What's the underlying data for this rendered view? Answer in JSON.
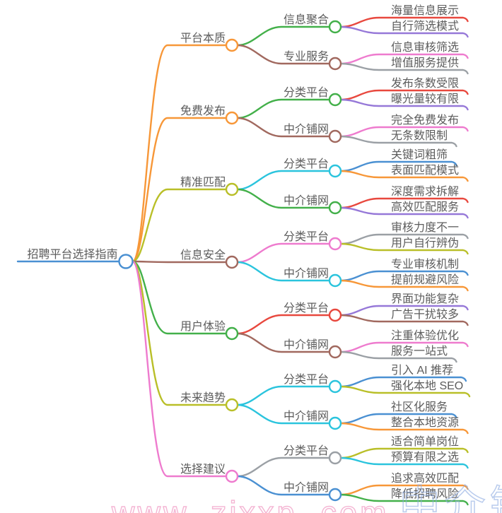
{
  "title": "招聘平台选择指南",
  "palette": {
    "blue": "#4a90d2",
    "orange": "#f79738",
    "olive": "#b9bf28",
    "brown": "#a1695f",
    "green": "#43b04a",
    "cyan": "#2bc4dd",
    "pink": "#ee7bce",
    "red": "#e8483e",
    "purple": "#9678d8",
    "gray": "#9ba0a5"
  },
  "root": {
    "label": "招聘平台选择指南",
    "color": "blue"
  },
  "branches": [
    {
      "label": "平台本质",
      "color": "orange",
      "children": [
        {
          "label": "信息聚合",
          "color": "green",
          "leaves": [
            {
              "label": "海量信息展示",
              "color": "red"
            },
            {
              "label": "自行筛选模式",
              "color": "purple"
            }
          ]
        },
        {
          "label": "专业服务",
          "color": "brown",
          "leaves": [
            {
              "label": "信息审核筛选",
              "color": "pink"
            },
            {
              "label": "增值服务提供",
              "color": "gray"
            }
          ]
        }
      ]
    },
    {
      "label": "免费发布",
      "color": "orange",
      "children": [
        {
          "label": "分类平台",
          "color": "green",
          "leaves": [
            {
              "label": "发布条数受限",
              "color": "red"
            },
            {
              "label": "曝光量较有限",
              "color": "purple"
            }
          ]
        },
        {
          "label": "中介铺网",
          "color": "brown",
          "leaves": [
            {
              "label": "完全免费发布",
              "color": "pink"
            },
            {
              "label": "无条数限制",
              "color": "gray"
            }
          ]
        }
      ]
    },
    {
      "label": "精准匹配",
      "color": "olive",
      "children": [
        {
          "label": "分类平台",
          "color": "cyan",
          "leaves": [
            {
              "label": "关键词粗筛",
              "color": "blue"
            },
            {
              "label": "表面匹配模式",
              "color": "orange"
            }
          ]
        },
        {
          "label": "中介铺网",
          "color": "green",
          "leaves": [
            {
              "label": "深度需求拆解",
              "color": "red"
            },
            {
              "label": "高效匹配服务",
              "color": "purple"
            }
          ]
        }
      ]
    },
    {
      "label": "信息安全",
      "color": "brown",
      "children": [
        {
          "label": "分类平台",
          "color": "pink",
          "leaves": [
            {
              "label": "审核力度不一",
              "color": "gray"
            },
            {
              "label": "用户自行辨伪",
              "color": "olive"
            }
          ]
        },
        {
          "label": "中介铺网",
          "color": "cyan",
          "leaves": [
            {
              "label": "专业审核机制",
              "color": "blue"
            },
            {
              "label": "提前规避风险",
              "color": "orange"
            }
          ]
        }
      ]
    },
    {
      "label": "用户体验",
      "color": "green",
      "children": [
        {
          "label": "分类平台",
          "color": "red",
          "leaves": [
            {
              "label": "界面功能复杂",
              "color": "purple"
            },
            {
              "label": "广告干扰较多",
              "color": "brown"
            }
          ]
        },
        {
          "label": "中介铺网",
          "color": "brown",
          "leaves": [
            {
              "label": "注重体验优化",
              "color": "pink"
            },
            {
              "label": "服务一站式",
              "color": "gray"
            }
          ]
        }
      ]
    },
    {
      "label": "未来趋势",
      "color": "olive",
      "children": [
        {
          "label": "分类平台",
          "color": "cyan",
          "leaves": [
            {
              "label": "引入 AI 推荐",
              "color": "blue"
            },
            {
              "label": "强化本地 SEO",
              "color": "olive"
            }
          ]
        },
        {
          "label": "中介铺网",
          "color": "cyan",
          "leaves": [
            {
              "label": "社区化服务",
              "color": "blue"
            },
            {
              "label": "整合本地资源",
              "color": "orange"
            }
          ]
        }
      ]
    },
    {
      "label": "选择建议",
      "color": "pink",
      "children": [
        {
          "label": "分类平台",
          "color": "gray",
          "leaves": [
            {
              "label": "适合简单岗位",
              "color": "olive"
            },
            {
              "label": "预算有限之选",
              "color": "cyan"
            }
          ]
        },
        {
          "label": "中介铺网",
          "color": "blue",
          "leaves": [
            {
              "label": "追求高效匹配",
              "color": "orange"
            },
            {
              "label": "降低招聘风险",
              "color": "green"
            }
          ]
        }
      ]
    }
  ],
  "watermark": {
    "url_text": "www. zjxxp. com",
    "brand_text": "中介铺网"
  }
}
